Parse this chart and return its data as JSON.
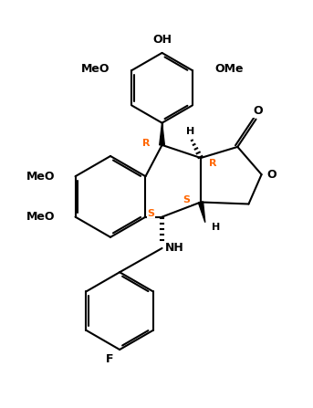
{
  "bg_color": "#ffffff",
  "bond_color": "#000000",
  "lw": 1.5,
  "figsize": [
    3.43,
    4.47
  ],
  "dpi": 100,
  "xlim": [
    0.2,
    7.8
  ],
  "ylim": [
    1.5,
    12.5
  ]
}
